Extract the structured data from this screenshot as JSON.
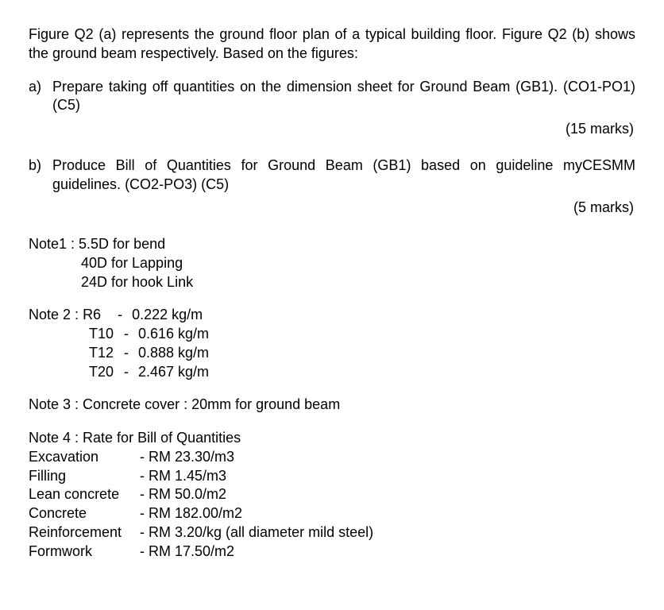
{
  "intro": "Figure Q2 (a) represents the ground floor plan of a typical building floor. Figure Q2 (b) shows the ground beam respectively. Based on the figures:",
  "qa": {
    "label": "a)",
    "text": "Prepare taking off quantities on the dimension sheet for Ground Beam (GB1). (CO1-PO1) (C5)",
    "marks": "(15 marks)"
  },
  "qb": {
    "label": "b)",
    "text": "Produce Bill of Quantities for Ground Beam (GB1) based on guideline myCESMM guidelines. (CO2-PO3) (C5)",
    "marks": "(5 marks)"
  },
  "note1": {
    "header": "Note1 : 5.5D for bend",
    "line2": "40D for Lapping",
    "line3": "24D for hook Link"
  },
  "note2": {
    "header": "Note 2 :",
    "rows": [
      {
        "name": "R6",
        "dash": "-",
        "val": "0.222 kg/m"
      },
      {
        "name": "T10",
        "dash": "-",
        "val": "0.616 kg/m"
      },
      {
        "name": "T12",
        "dash": "-",
        "val": "0.888 kg/m"
      },
      {
        "name": "T20",
        "dash": "-",
        "val": "2.467 kg/m"
      }
    ]
  },
  "note3": "Note 3 : Concrete cover : 20mm for ground beam",
  "note4": {
    "header": "Note 4 : Rate for Bill of Quantities",
    "rows": [
      {
        "name": "Excavation",
        "val": "- RM 23.30/m3"
      },
      {
        "name": "Filling",
        "val": "- RM 1.45/m3"
      },
      {
        "name": "Lean concrete",
        "val": "- RM 50.0/m2"
      },
      {
        "name": "Concrete",
        "val": "- RM 182.00/m2"
      },
      {
        "name": "Reinforcement",
        "val": "- RM 3.20/kg (all diameter mild steel)"
      },
      {
        "name": "Formwork",
        "val": "- RM 17.50/m2"
      }
    ]
  }
}
